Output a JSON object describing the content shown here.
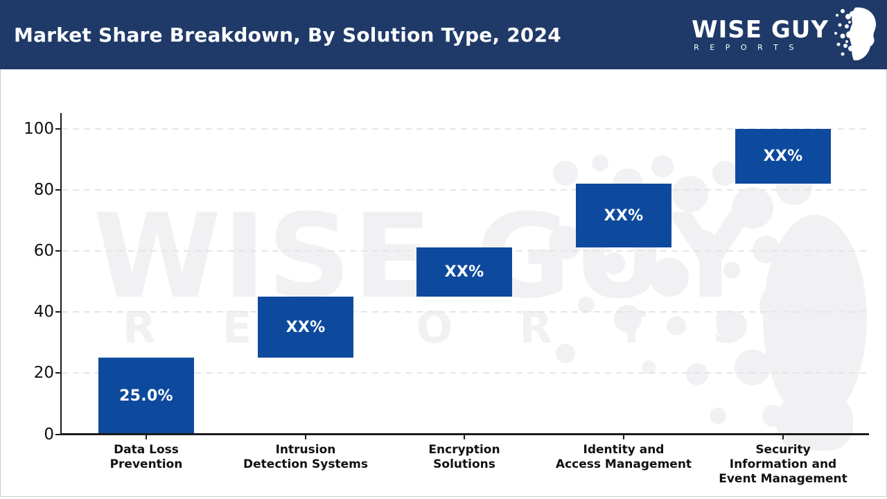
{
  "header": {
    "title": "Market Share Breakdown, By Solution Type, 2024",
    "logo": {
      "line1": "WISE GUY",
      "line2": "R E P O R T S"
    }
  },
  "watermark": {
    "line1": "WISE GUY",
    "line2": "REPORTS"
  },
  "colors": {
    "header_bg": "#1f3a68",
    "bar": "#0d4a9e",
    "bar_label": "#ffffff",
    "grid": "#e5e5e8",
    "axis": "#1a1a1a",
    "watermark": "#f1f1f3",
    "card_border": "#cfcfcf"
  },
  "chart_data": {
    "type": "bar",
    "variant": "waterfall",
    "title": "Market Share Breakdown, By Solution Type, 2024",
    "xlabel": "",
    "ylabel": "",
    "categories": [
      "Data Loss\nPrevention",
      "Intrusion\nDetection Systems",
      "Encryption\nSolutions",
      "Identity and\nAccess Management",
      "Security\nInformation and\nEvent Management"
    ],
    "segment_values": [
      25,
      20,
      16,
      21,
      18
    ],
    "segment_starts": [
      0,
      25,
      45,
      61,
      82
    ],
    "segment_ends": [
      25,
      45,
      61,
      82,
      100
    ],
    "bar_labels": [
      "25.0%",
      "XX%",
      "XX%",
      "XX%",
      "XX%"
    ],
    "unit": "percent",
    "ylim": [
      0,
      105
    ],
    "yticks": [
      0,
      20,
      40,
      60,
      80,
      100
    ],
    "grid": "horizontal-dashed",
    "legend": "none",
    "bar_color": "#0d4a9e"
  }
}
